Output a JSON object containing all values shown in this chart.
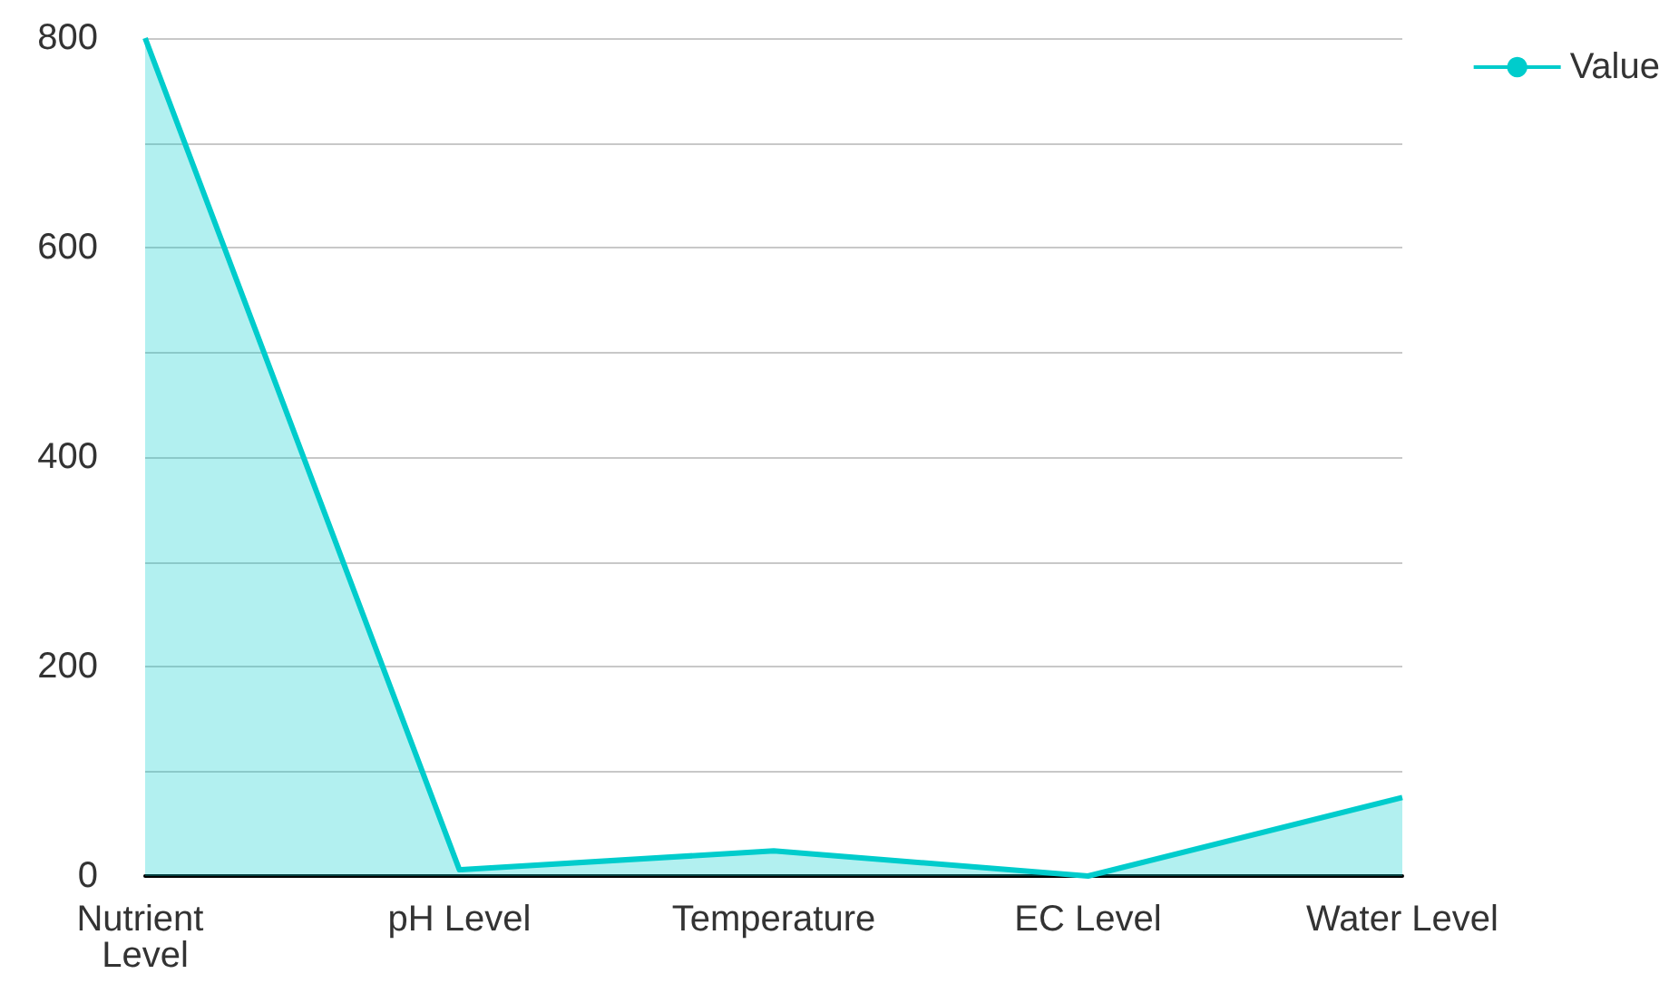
{
  "chart_data": {
    "type": "area",
    "categories": [
      "Nutrient Level",
      "pH Level",
      "Temperature",
      "EC Level",
      "Water Level"
    ],
    "series": [
      {
        "name": "Value",
        "color": "#00cccc",
        "values": [
          800,
          6,
          24,
          0,
          75
        ]
      }
    ],
    "ylim": [
      0,
      800
    ],
    "yticks": [
      0,
      {
        "value": 100,
        "label": null
      },
      200,
      {
        "value": 300,
        "label": null
      },
      400,
      {
        "value": 500,
        "label": null
      },
      600,
      {
        "value": 700,
        "label": null
      },
      800
    ],
    "grid": "y",
    "legend": "top right"
  }
}
